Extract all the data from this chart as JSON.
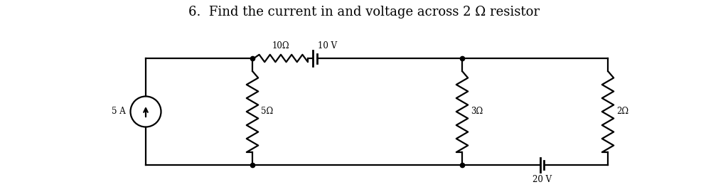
{
  "title": "6.  Find the current in and voltage across 2 Ω resistor",
  "title_fontsize": 13,
  "bg_color": "#ffffff",
  "line_color": "#000000",
  "labels": {
    "5A": "5 A",
    "5ohm": "5Ω",
    "10ohm": "10Ω",
    "10V": "10 V",
    "3ohm": "3Ω",
    "2ohm": "2Ω",
    "20V": "20 V"
  },
  "fig_width": 10.24,
  "fig_height": 2.7,
  "dpi": 100
}
